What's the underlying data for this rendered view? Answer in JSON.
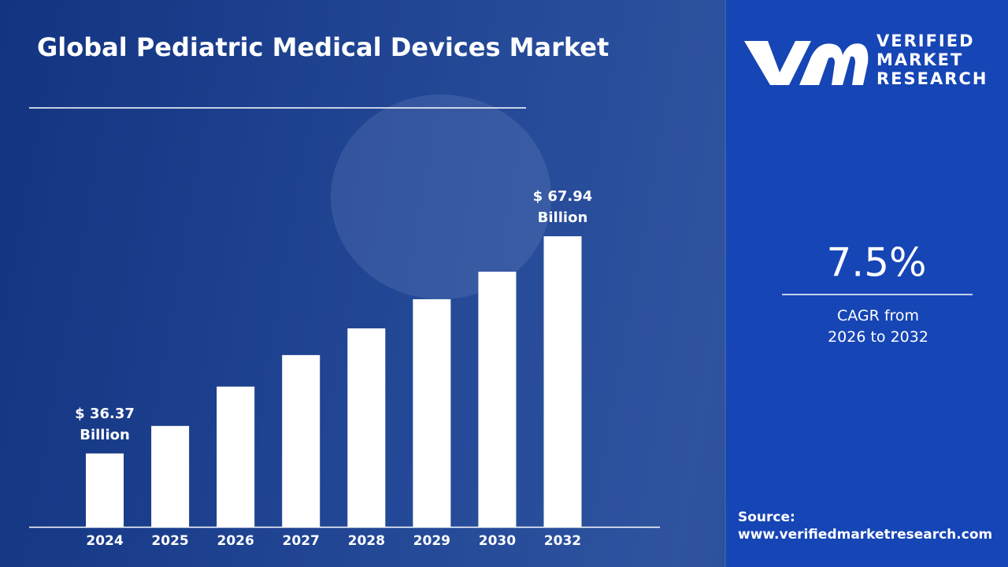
{
  "chart_data": {
    "type": "bar",
    "title": "Global Pediatric Medical Devices Market",
    "categories": [
      "2024",
      "2025",
      "2026",
      "2027",
      "2028",
      "2029",
      "2030",
      "2032"
    ],
    "values": [
      36.37,
      40.37,
      46.09,
      50.67,
      54.55,
      58.79,
      62.79,
      67.94
    ],
    "value_labels": [
      "$ 36.37 Billion",
      null,
      null,
      null,
      null,
      null,
      null,
      "$ 67.94 Billion"
    ],
    "color": "#ffffff",
    "ylim": [
      25.7,
      68
    ]
  },
  "panel": {
    "brand": [
      "VERIFIED",
      "MARKET",
      "RESEARCH"
    ],
    "cagr": "7.5%",
    "cagr_caption": "CAGR from 2026 to 2032",
    "source_label": "Source:",
    "source_url": "www.verifiedmarketresearch.com"
  }
}
